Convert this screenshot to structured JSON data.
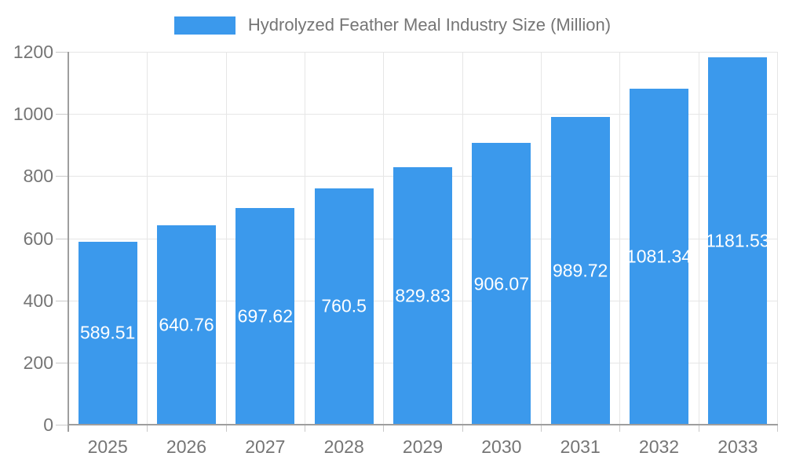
{
  "legend": {
    "label": "Hydrolyzed Feather Meal Industry Size (Million)"
  },
  "colors": {
    "bar": "#3b99ec",
    "grid": "#e6e6e6",
    "axis": "#9e9e9e",
    "tick": "#c9c9c9",
    "axis_label": "#757575",
    "value_label": "#ffffff",
    "legend_label": "#757575",
    "background": "#ffffff"
  },
  "chart_data": {
    "type": "bar",
    "title": "Hydrolyzed Feather Meal Industry Size (Million)",
    "series_name": "Hydrolyzed Feather Meal Industry Size (Million)",
    "categories": [
      "2025",
      "2026",
      "2027",
      "2028",
      "2029",
      "2030",
      "2031",
      "2032",
      "2033"
    ],
    "values": [
      589.51,
      640.76,
      697.62,
      760.5,
      829.83,
      906.07,
      989.72,
      1081.34,
      1181.53
    ],
    "xlabel": "",
    "ylabel": "",
    "ylim": [
      0,
      1200
    ],
    "yticks": [
      0,
      200,
      400,
      600,
      800,
      1000,
      1200
    ],
    "grid": true,
    "legend_position": "top",
    "value_labels": "inside-center"
  }
}
